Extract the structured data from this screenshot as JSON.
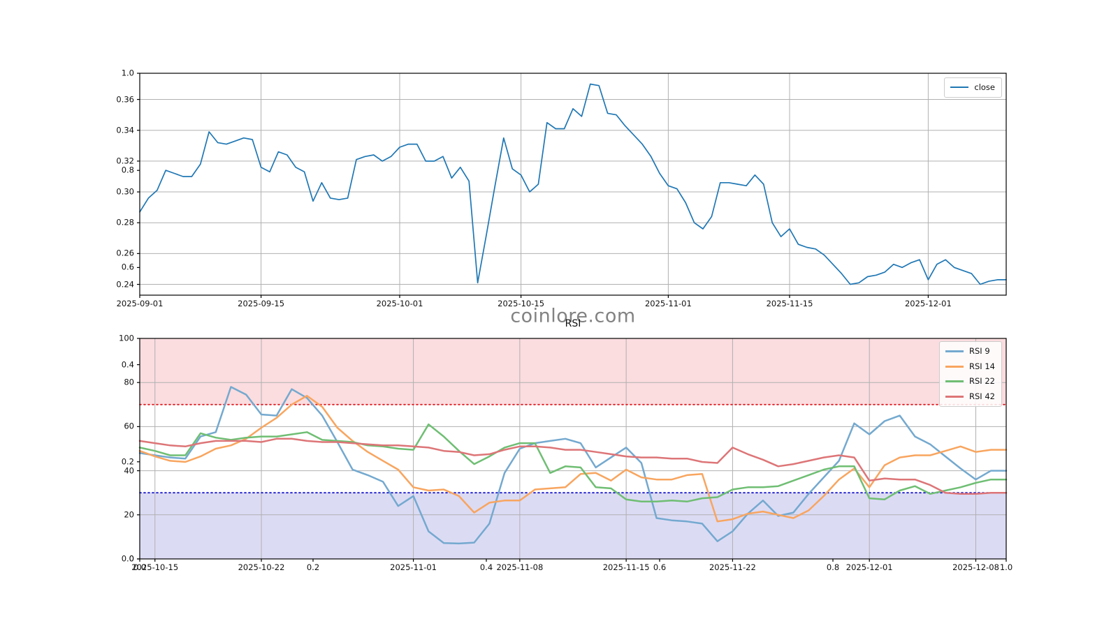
{
  "watermark": "coinlore.com",
  "overlay_axis": {
    "xtick_labels": [
      "0.0",
      "0.2",
      "0.4",
      "0.6",
      "0.8",
      "1.0"
    ],
    "ytick_labels": [
      "0.0",
      "0.2",
      "0.4",
      "0.6",
      "0.8",
      "1.0"
    ]
  },
  "chart_data": [
    {
      "type": "line",
      "title": "",
      "grid": true,
      "legend_position": "upper right",
      "x_start": "2025-09-01",
      "x_end": "2025-12-10",
      "x_span_days": 100,
      "xticks": [
        {
          "d": 0,
          "label": "2025-09-01"
        },
        {
          "d": 14,
          "label": "2025-09-15"
        },
        {
          "d": 30,
          "label": "2025-10-01"
        },
        {
          "d": 44,
          "label": "2025-10-15"
        },
        {
          "d": 61,
          "label": "2025-11-01"
        },
        {
          "d": 75,
          "label": "2025-11-15"
        },
        {
          "d": 91,
          "label": "2025-12-01"
        }
      ],
      "ylim": [
        0.233,
        0.377
      ],
      "yticks": [
        {
          "v": 0.24,
          "label": "0.24"
        },
        {
          "v": 0.26,
          "label": "0.26"
        },
        {
          "v": 0.28,
          "label": "0.28"
        },
        {
          "v": 0.3,
          "label": "0.30"
        },
        {
          "v": 0.32,
          "label": "0.32"
        },
        {
          "v": 0.34,
          "label": "0.34"
        },
        {
          "v": 0.36,
          "label": "0.36"
        }
      ],
      "series": [
        {
          "name": "close",
          "color": "#1f77b4",
          "values": [
            0.287,
            0.296,
            0.301,
            0.314,
            0.312,
            0.31,
            0.31,
            0.318,
            0.339,
            0.332,
            0.331,
            0.333,
            0.335,
            0.334,
            0.316,
            0.313,
            0.326,
            0.324,
            0.316,
            0.313,
            0.294,
            0.306,
            0.296,
            0.295,
            0.296,
            0.321,
            0.323,
            0.324,
            0.32,
            0.323,
            0.329,
            0.331,
            0.331,
            0.32,
            0.32,
            0.323,
            0.309,
            0.316,
            0.307,
            0.241,
            0.272,
            0.304,
            0.335,
            0.315,
            0.311,
            0.3,
            0.305,
            0.345,
            0.341,
            0.341,
            0.354,
            0.349,
            0.37,
            0.369,
            0.351,
            0.35,
            0.343,
            0.337,
            0.331,
            0.323,
            0.312,
            0.304,
            0.302,
            0.293,
            0.28,
            0.276,
            0.284,
            0.306,
            0.306,
            0.305,
            0.304,
            0.311,
            0.305,
            0.28,
            0.271,
            0.276,
            0.266,
            0.264,
            0.263,
            0.259,
            0.253,
            0.247,
            0.24,
            0.241,
            0.245,
            0.246,
            0.248,
            0.253,
            0.251,
            0.254,
            0.256,
            0.243,
            0.253,
            0.256,
            0.251,
            0.249,
            0.247,
            0.24,
            0.242,
            0.243,
            0.243
          ]
        }
      ]
    },
    {
      "type": "line",
      "title": "RSI",
      "grid": true,
      "legend_position": "upper right",
      "x_start": "2025-10-14",
      "x_end": "2025-12-10",
      "x_span_days": 57,
      "xticks": [
        {
          "d": 1,
          "label": "2025-10-15"
        },
        {
          "d": 8,
          "label": "2025-10-22"
        },
        {
          "d": 18,
          "label": "2025-11-01"
        },
        {
          "d": 25,
          "label": "2025-11-08"
        },
        {
          "d": 32,
          "label": "2025-11-15"
        },
        {
          "d": 39,
          "label": "2025-11-22"
        },
        {
          "d": 48,
          "label": "2025-12-01"
        },
        {
          "d": 55,
          "label": "2025-12-08"
        }
      ],
      "ylim": [
        0,
        100
      ],
      "yticks": [
        {
          "v": 0,
          "label": "0"
        },
        {
          "v": 20,
          "label": "20"
        },
        {
          "v": 40,
          "label": "40"
        },
        {
          "v": 60,
          "label": "60"
        },
        {
          "v": 80,
          "label": "80"
        },
        {
          "v": 100,
          "label": "100"
        }
      ],
      "bands": [
        {
          "from": 70,
          "to": 100,
          "color": "#fbdcdf",
          "meaning": "overbought"
        },
        {
          "from": 0,
          "to": 30,
          "color": "#dcdbf4",
          "meaning": "oversold"
        }
      ],
      "hlines": [
        {
          "y": 70,
          "color": "#e32227",
          "style": "dotted"
        },
        {
          "y": 30,
          "color": "#1c1ccf",
          "style": "dotted"
        }
      ],
      "series": [
        {
          "name": "RSI 9",
          "color": "#74a9cf",
          "values": [
            48,
            47,
            46,
            45.5,
            55.5,
            57.5,
            78,
            74.5,
            65.5,
            65,
            77,
            73,
            65,
            53,
            40.5,
            38,
            35,
            24,
            28.5,
            12.5,
            7.2,
            7,
            7.4,
            16,
            39,
            50,
            52.5,
            53.5,
            54.5,
            52.5,
            41.5,
            46,
            50.5,
            43.5,
            18.5,
            17.5,
            17,
            16,
            8,
            12.5,
            20.5,
            26.5,
            19.5,
            21,
            29.5,
            37,
            44.5,
            61.5,
            56.5,
            62.5,
            65,
            55.5,
            52,
            46.5,
            41,
            36,
            40,
            40
          ]
        },
        {
          "name": "RSI 14",
          "color": "#f8a55f",
          "values": [
            49,
            46.5,
            44.5,
            44,
            46.5,
            50,
            51.5,
            54.5,
            59.5,
            64,
            70,
            74,
            69,
            59.5,
            53.5,
            48.5,
            44.5,
            40.5,
            32.5,
            31,
            31.5,
            28.5,
            21,
            25.5,
            26.5,
            26.5,
            31.5,
            32,
            32.5,
            38.5,
            39,
            35.5,
            40.5,
            37,
            36,
            36,
            38,
            38.5,
            17,
            18,
            20.5,
            21.5,
            20,
            18.5,
            22,
            28.5,
            36,
            41,
            32.5,
            42.5,
            46,
            47,
            47,
            49,
            51,
            48.5,
            49.5,
            49.5
          ]
        },
        {
          "name": "RSI 22",
          "color": "#6fbe73",
          "values": [
            50.5,
            49,
            47,
            47,
            57,
            55,
            54,
            55,
            55.5,
            55.5,
            56.5,
            57.5,
            54,
            53.5,
            53,
            51.5,
            51,
            50,
            49.5,
            61,
            55.5,
            49,
            43,
            46.5,
            50.5,
            52.5,
            52.5,
            39,
            42,
            41.5,
            32.5,
            32,
            27,
            26,
            26,
            26.5,
            26,
            27.5,
            28,
            31.5,
            32.5,
            32.5,
            33,
            35.5,
            38,
            40.5,
            42,
            42,
            27.5,
            27,
            31,
            33,
            29.5,
            31,
            32.5,
            34.5,
            36,
            36
          ]
        },
        {
          "name": "RSI 42",
          "color": "#dd7577",
          "values": [
            53.5,
            52.5,
            51.5,
            51,
            52.5,
            53.5,
            53.5,
            53.5,
            53,
            54.5,
            54.5,
            53.5,
            53,
            53,
            52.5,
            52,
            51.5,
            51.5,
            51,
            50.5,
            49,
            48.5,
            47,
            47.5,
            49.5,
            51,
            51,
            50.5,
            49.5,
            49.5,
            48.5,
            47.5,
            46.5,
            46,
            46,
            45.5,
            45.5,
            44,
            43.5,
            50.5,
            47.5,
            45,
            42,
            43,
            44.5,
            46,
            47,
            46,
            35.5,
            36.5,
            36,
            36,
            33.5,
            30,
            29.5,
            29.5,
            30,
            30
          ]
        }
      ]
    }
  ]
}
